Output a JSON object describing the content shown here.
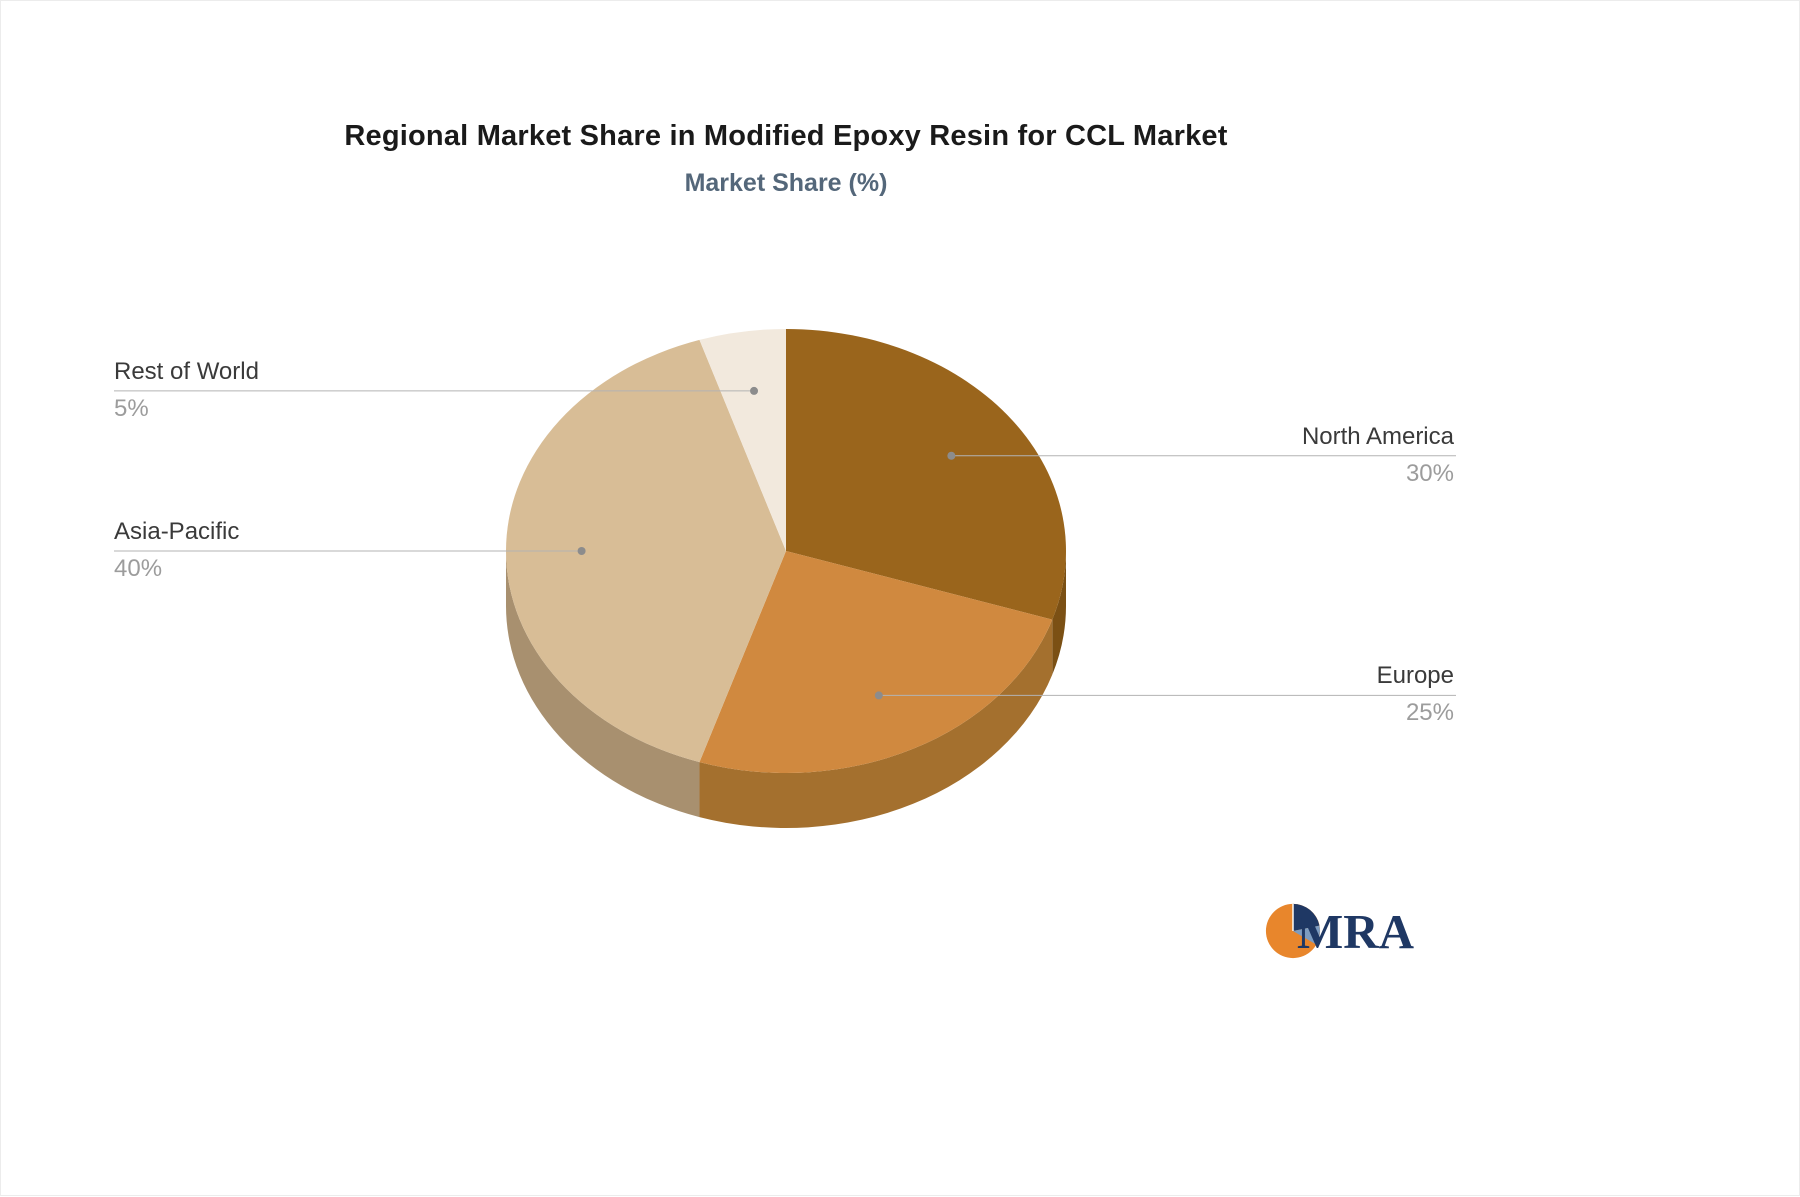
{
  "chart_data": {
    "type": "pie",
    "title": "Regional Market Share in Modified Epoxy Resin for CCL Market",
    "subtitle": "Market Share (%)",
    "unit": "%",
    "start_angle_deg": -90,
    "direction": "clockwise",
    "legend": "none",
    "style": "3d-pie",
    "label_color": "#3a3a3a",
    "value_color": "#9c9c9c",
    "leader_line_color": "#b3b3b3",
    "slices": [
      {
        "label": "North America",
        "value": 30,
        "display": "30%",
        "color": "#9a651c",
        "side_color": "#7b5014",
        "label_side": "right"
      },
      {
        "label": "Europe",
        "value": 25,
        "display": "25%",
        "color": "#d0893f",
        "side_color": "#a4702e",
        "label_side": "right"
      },
      {
        "label": "Asia-Pacific",
        "value": 40,
        "display": "40%",
        "color": "#d8bd96",
        "side_color": "#a8906f",
        "label_side": "left"
      },
      {
        "label": "Rest of World",
        "value": 5,
        "display": "5%",
        "color": "#f2e9dd",
        "side_color": "#cdc3b4",
        "label_side": "left"
      }
    ]
  },
  "logo": {
    "text": "MRA",
    "colors": {
      "orange": "#e8862c",
      "navy": "#1f3864",
      "steel": "#7d9cc0"
    }
  }
}
